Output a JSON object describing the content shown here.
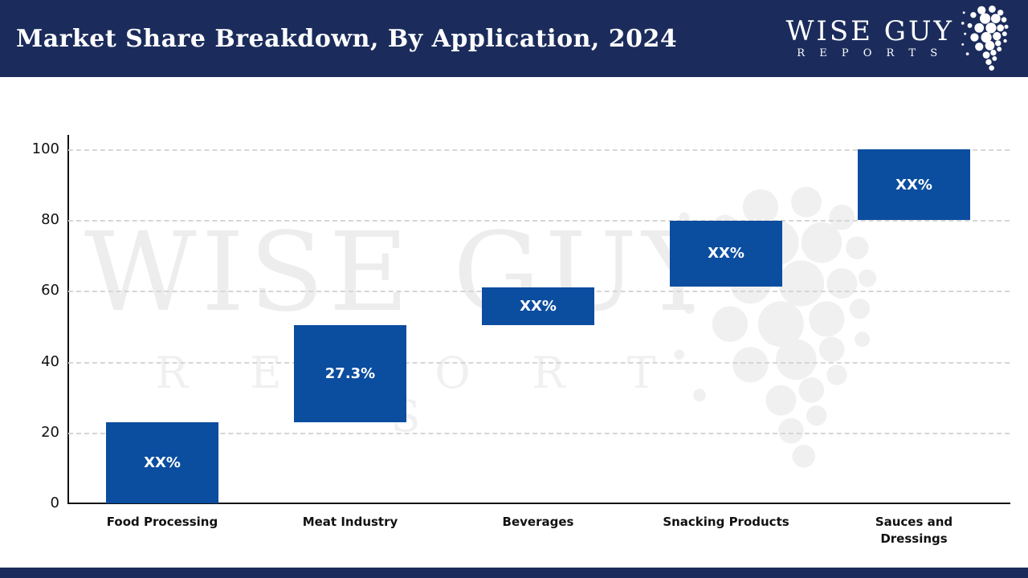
{
  "header": {
    "title": "Market Share Breakdown, By Application, 2024",
    "bg_color": "#1b2c5c",
    "logo": {
      "line1": "WISE GUY",
      "line2": "R E P O R T S",
      "icon": "dotted-head-icon"
    }
  },
  "watermark": {
    "line1": "WISE GUY",
    "line2": "R E P O R T S",
    "icon": "dotted-head-icon"
  },
  "chart_data": {
    "type": "bar",
    "subtype": "waterfall",
    "title": "Market Share Breakdown, By Application, 2024",
    "categories": [
      "Food Processing",
      "Meat Industry",
      "Beverages",
      "Snacking Products",
      "Sauces and Dressings"
    ],
    "bars": [
      {
        "category": "Food Processing",
        "start": 0,
        "end": 23,
        "label": "XX%"
      },
      {
        "category": "Meat Industry",
        "start": 23,
        "end": 50.3,
        "label": "27.3%"
      },
      {
        "category": "Beverages",
        "start": 50.3,
        "end": 61,
        "label": "XX%"
      },
      {
        "category": "Snacking Products",
        "start": 61.3,
        "end": 79.8,
        "label": "XX%"
      },
      {
        "category": "Sauces and Dressings",
        "start": 80,
        "end": 100,
        "label": "XX%"
      }
    ],
    "ylim": [
      0,
      100
    ],
    "yticks": [
      0,
      20,
      40,
      60,
      80,
      100
    ],
    "grid": "horizontal-dashed",
    "bar_color": "#0b4d9f",
    "label_color": "#ffffff",
    "axis_color": "#111111"
  }
}
